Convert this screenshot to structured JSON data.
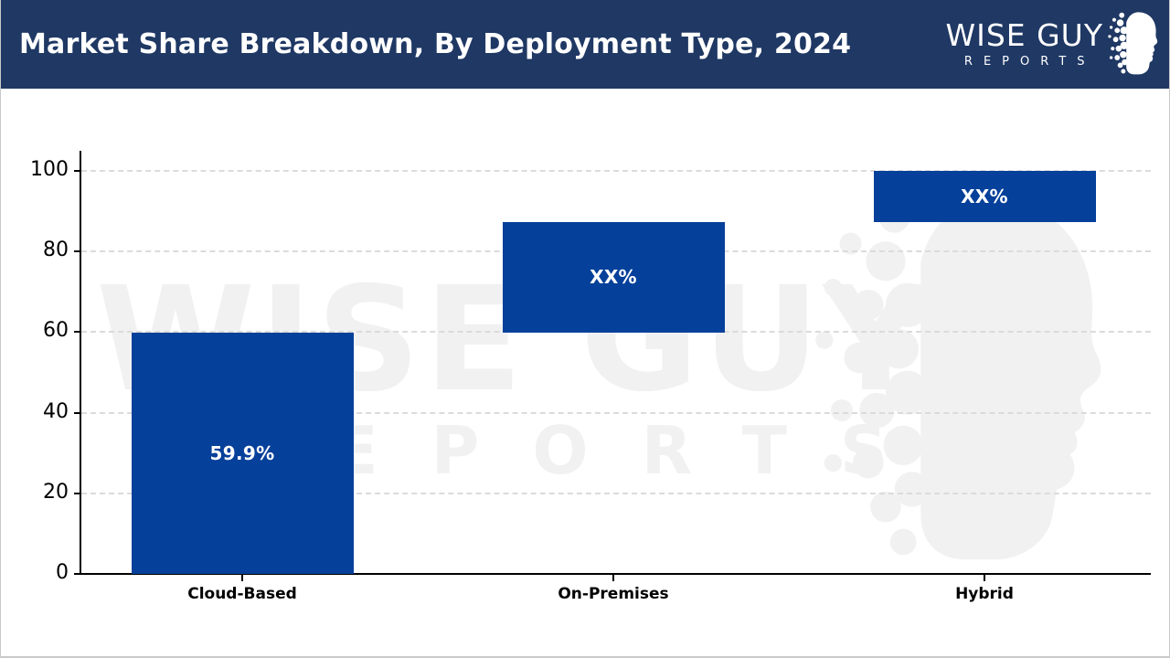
{
  "header": {
    "title": "Market Share Breakdown, By Deployment Type, 2024",
    "logo": {
      "line1": "WISE GUY",
      "line2": "REPORTS"
    }
  },
  "watermark": {
    "line1": "WISE GUY",
    "line2": "REPORTS"
  },
  "chart_data": {
    "type": "bar",
    "subtype": "waterfall-breakdown",
    "title": "Market Share Breakdown, By Deployment Type, 2024",
    "categories": [
      "Cloud-Based",
      "On-Premises",
      "Hybrid"
    ],
    "segments": [
      {
        "category": "Cloud-Based",
        "start": 0,
        "end": 59.9,
        "value_label": "59.9%"
      },
      {
        "category": "On-Premises",
        "start": 59.9,
        "end": 87.3,
        "value_label": "XX%"
      },
      {
        "category": "Hybrid",
        "start": 87.3,
        "end": 100,
        "value_label": "XX%"
      }
    ],
    "xlabel": "",
    "ylabel": "",
    "ylim": [
      0,
      100
    ],
    "yticks": [
      0,
      20,
      40,
      60,
      80,
      100
    ],
    "grid": "horizontal-dashed",
    "legend": "none",
    "bar_color": "#05409a",
    "label_color": "#ffffff"
  },
  "colors": {
    "header_bg": "#1f3864",
    "bar": "#05409a",
    "grid": "#dbdbdb",
    "axis": "#000000",
    "watermark": "#f1f1f1",
    "page_border": "#c9c9c9"
  }
}
